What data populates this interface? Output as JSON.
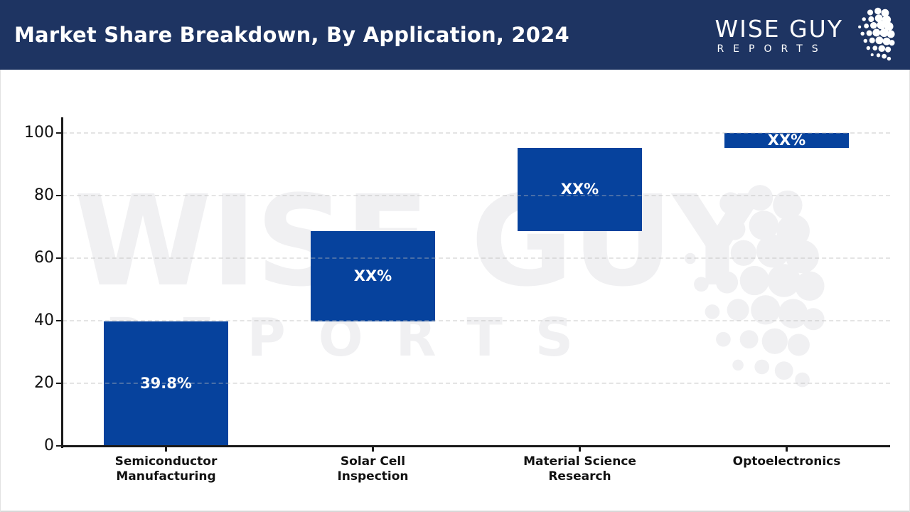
{
  "header": {
    "title": "Market Share Breakdown, By Application, 2024",
    "bg_color": "#1e3462",
    "logo": {
      "line1": "WISE GUY",
      "line2": "REPORTS"
    }
  },
  "watermark": {
    "line1": "WISE GUY",
    "line2": "REPORTS"
  },
  "chart_data": {
    "type": "bar",
    "variant": "waterfall",
    "title": "Market Share Breakdown, By Application, 2024",
    "categories": [
      [
        "Semiconductor",
        "Manufacturing"
      ],
      [
        "Solar Cell",
        "Inspection"
      ],
      [
        "Material Science",
        "Research"
      ],
      [
        "Optoelectronics"
      ]
    ],
    "segments": [
      {
        "start": 0,
        "end": 39.8,
        "label": "39.8%"
      },
      {
        "start": 39.8,
        "end": 68.6,
        "label": "XX%"
      },
      {
        "start": 68.6,
        "end": 95.2,
        "label": "XX%"
      },
      {
        "start": 95.2,
        "end": 100,
        "label": "XX%"
      }
    ],
    "values_displayed": [
      "39.8%",
      "XX%",
      "XX%",
      "XX%"
    ],
    "yticks": [
      0,
      20,
      40,
      60,
      80,
      100
    ],
    "ylim": [
      0,
      105
    ],
    "grid": "horizontal-dashed",
    "legend": "none",
    "bar_color": "#06429d",
    "bar_label_color": "#ffffff",
    "axis_color": "#1a1a1a"
  },
  "colors": {
    "header_bg": "#1e3462",
    "bar": "#06429d",
    "watermark": "#f0f0f2",
    "grid": "#e4e4e4",
    "edge": "#d8d8d8"
  }
}
